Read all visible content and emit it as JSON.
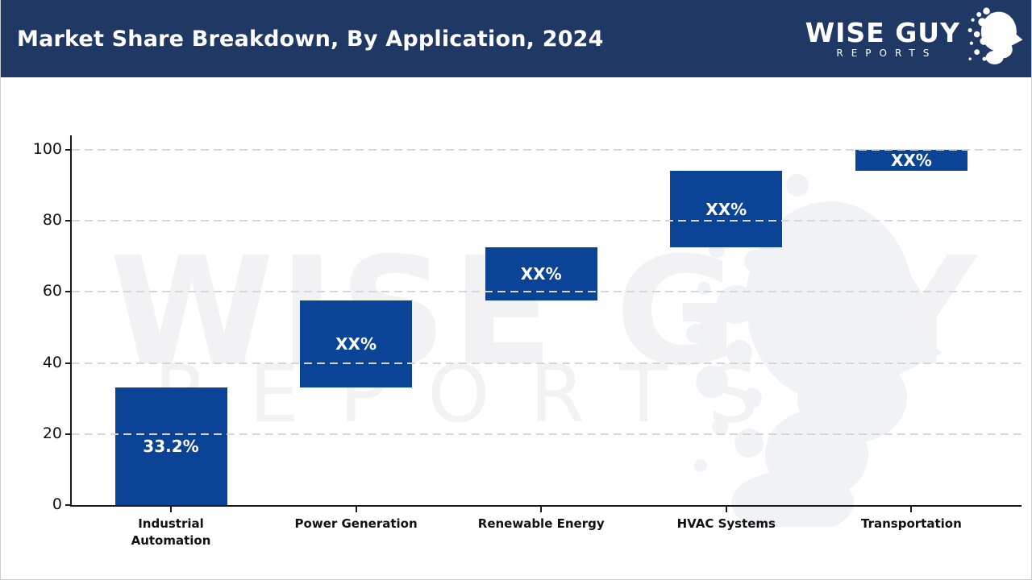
{
  "header": {
    "title": "Market Share Breakdown, By Application, 2024",
    "logo": {
      "wordmark": "WISE GUY",
      "subtitle": "REPORTS"
    }
  },
  "watermark": {
    "wordmark": "WISE GUY",
    "subtitle": "REPORTS"
  },
  "colors": {
    "header_bg": "#203864",
    "bar": "#0b4397",
    "bar_label_text": "#ffffff",
    "axis": "#1a1a1a",
    "gridline": "#d6d6d6",
    "watermark": "#f2f2f5"
  },
  "chart_data": {
    "type": "bar",
    "subtype": "floating-waterfall",
    "title": "Market Share Breakdown, By Application, 2024",
    "categories": [
      "Industrial\nAutomation",
      "Power Generation",
      "Renewable Energy",
      "HVAC Systems",
      "Transportation"
    ],
    "series": [
      {
        "name": "Market Share",
        "segments": [
          {
            "category": "Industrial Automation",
            "start": 0,
            "end": 33.2,
            "label": "33.2%"
          },
          {
            "category": "Power Generation",
            "start": 33.2,
            "end": 57.5,
            "label": "XX%"
          },
          {
            "category": "Renewable Energy",
            "start": 57.5,
            "end": 72.5,
            "label": "XX%"
          },
          {
            "category": "HVAC Systems",
            "start": 72.5,
            "end": 94,
            "label": "XX%"
          },
          {
            "category": "Transportation",
            "start": 94,
            "end": 100,
            "label": "XX%"
          }
        ]
      }
    ],
    "xlabel": "",
    "ylabel": "",
    "yticks": [
      0,
      20,
      40,
      60,
      80,
      100
    ],
    "ylim": [
      0,
      104
    ],
    "grid": "horizontal-dashed",
    "legend": "none"
  }
}
